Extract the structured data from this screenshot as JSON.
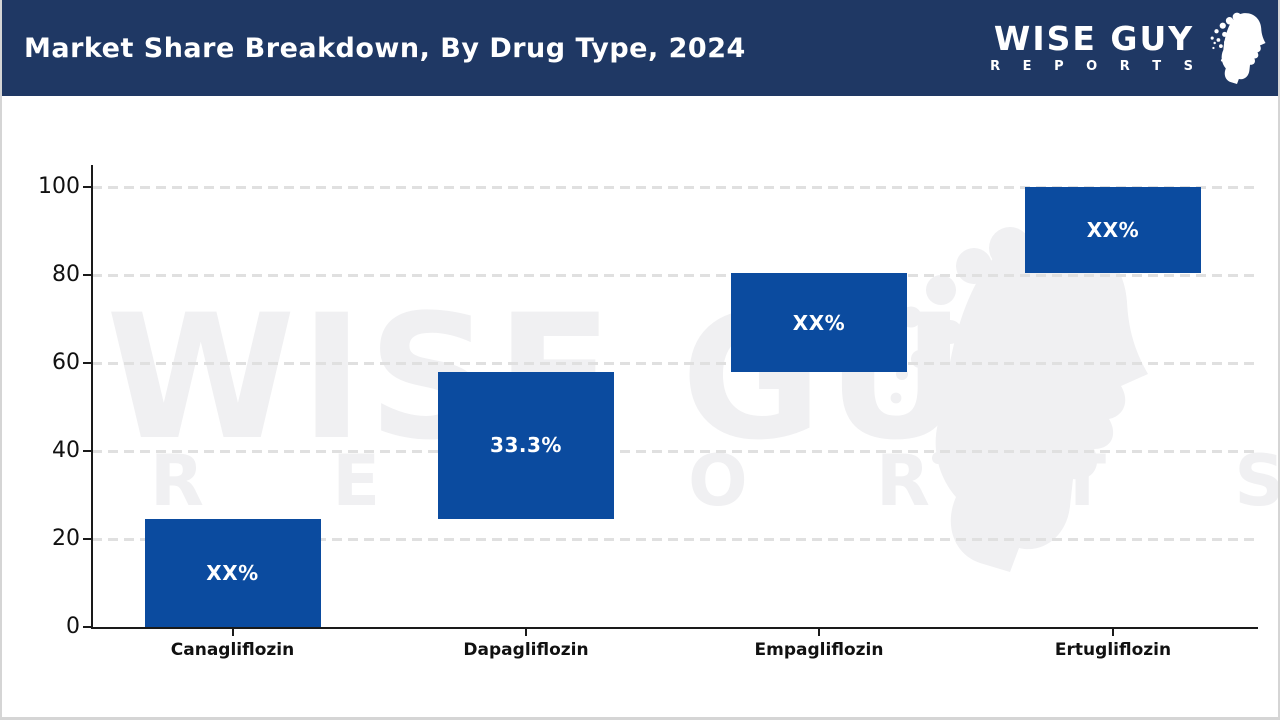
{
  "header": {
    "title": "Market Share Breakdown, By Drug Type, 2024",
    "logo": {
      "line1": "WISE GUY",
      "line2": "R E P O R T S"
    }
  },
  "watermark": {
    "line1": "WISE GUY",
    "line2": "R E P O R T S"
  },
  "colors": {
    "header_bg": "#1f3864",
    "bar": "#0b4b9f",
    "grid": "#e0e0e0",
    "axis": "#1a1a1a",
    "tick_label": "#111111",
    "bar_label": "#ffffff",
    "watermark": "#f0f0f2",
    "page_border": "#d5d5d5",
    "title_text": "#ffffff"
  },
  "chart_data": {
    "type": "bar",
    "subtype": "waterfall",
    "title": "Market Share Breakdown, By Drug Type, 2024",
    "unit": "%",
    "categories": [
      "Canagliflozin",
      "Dapagliflozin",
      "Empagliflozin",
      "Ertugliflozin"
    ],
    "segments": [
      {
        "category": "Canagliflozin",
        "start": 0,
        "end": 24.6,
        "label": "XX%"
      },
      {
        "category": "Dapagliflozin",
        "start": 24.6,
        "end": 57.9,
        "label": "33.3%",
        "value": 33.3
      },
      {
        "category": "Empagliflozin",
        "start": 57.9,
        "end": 80.4,
        "label": "XX%"
      },
      {
        "category": "Ertugliflozin",
        "start": 80.4,
        "end": 100,
        "label": "XX%"
      }
    ],
    "yticks": [
      0,
      20,
      40,
      60,
      80,
      100
    ],
    "ylim": [
      0,
      100
    ],
    "grid": "horizontal-dashed",
    "legend": "none"
  }
}
